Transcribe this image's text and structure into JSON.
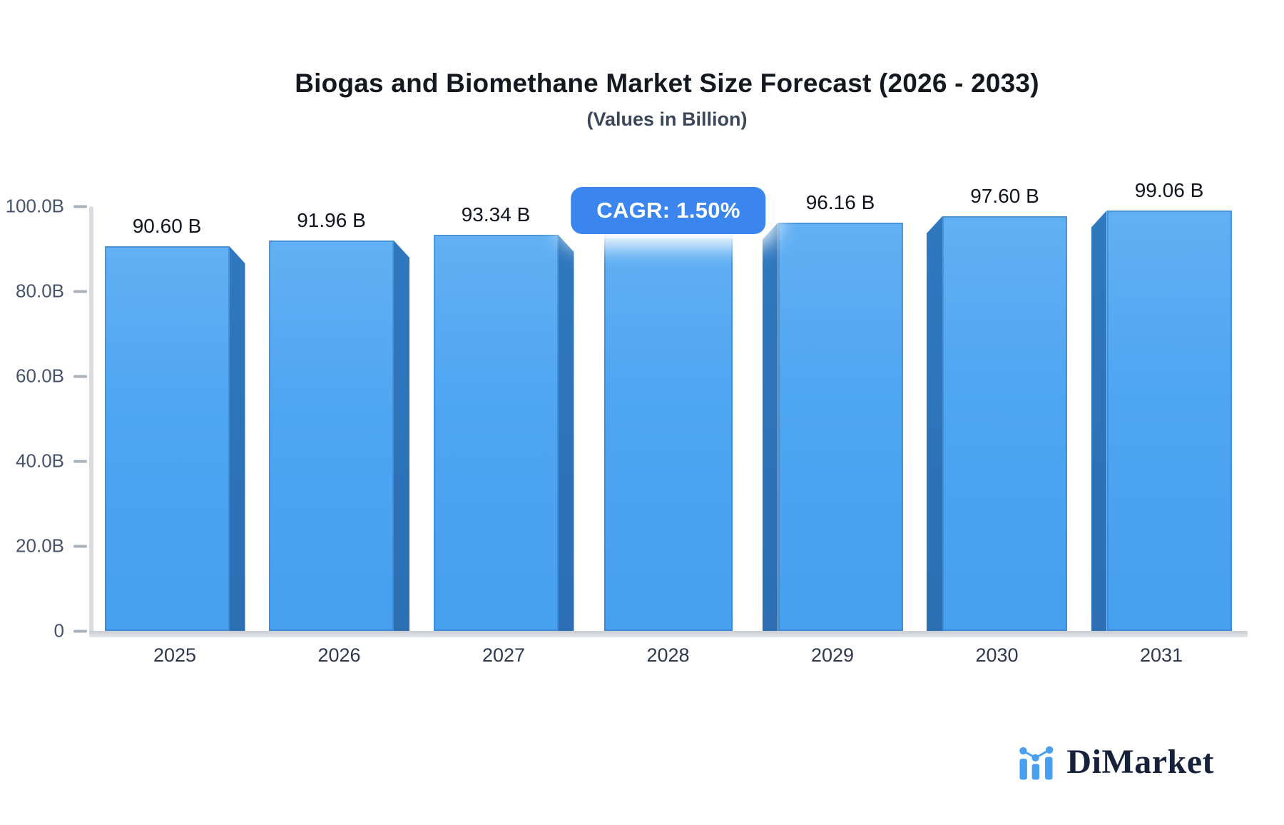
{
  "header": {
    "title": "Biogas and Biomethane Market Size Forecast (2026 - 2033)",
    "subtitle": "(Values in Billion)"
  },
  "badge": {
    "label": "CAGR: 1.50%",
    "color": "#3b86ee",
    "text_color": "#ffffff"
  },
  "chart_data": {
    "type": "bar",
    "title": "Biogas and Biomethane Market Size Forecast (2026 - 2033)",
    "subtitle": "(Values in Billion)",
    "categories": [
      "2025",
      "2026",
      "2027",
      "2028",
      "2029",
      "2030",
      "2031"
    ],
    "values": [
      90.6,
      91.96,
      93.34,
      94.74,
      96.16,
      97.6,
      99.06
    ],
    "bar_labels": [
      "90.60 B",
      "91.96 B",
      "93.34 B",
      "",
      "96.16 B",
      "97.60 B",
      "99.06 B"
    ],
    "ylim": [
      0,
      100
    ],
    "ytick_labels": [
      "100.0B",
      "80.0B",
      "60.0B",
      "40.0B",
      "20.0B",
      "0"
    ],
    "ytick_values": [
      100,
      80,
      60,
      40,
      20,
      0
    ],
    "grid": false,
    "legend": "none",
    "annotation": "CAGR: 1.50% badge centered over 2028 bar; 2028 value label hidden behind badge",
    "bar_face_top_color": "#62b0f4",
    "bar_face_bottom_color": "#479ff0",
    "bar_edge_color": "#2e74ba",
    "edge_sides": [
      "right",
      "right",
      "right",
      "none",
      "left",
      "left",
      "left"
    ]
  },
  "footer": {
    "brand": "DiMarket",
    "logo_blue": "#4aa0f0",
    "logo_text_color": "#16213a"
  }
}
